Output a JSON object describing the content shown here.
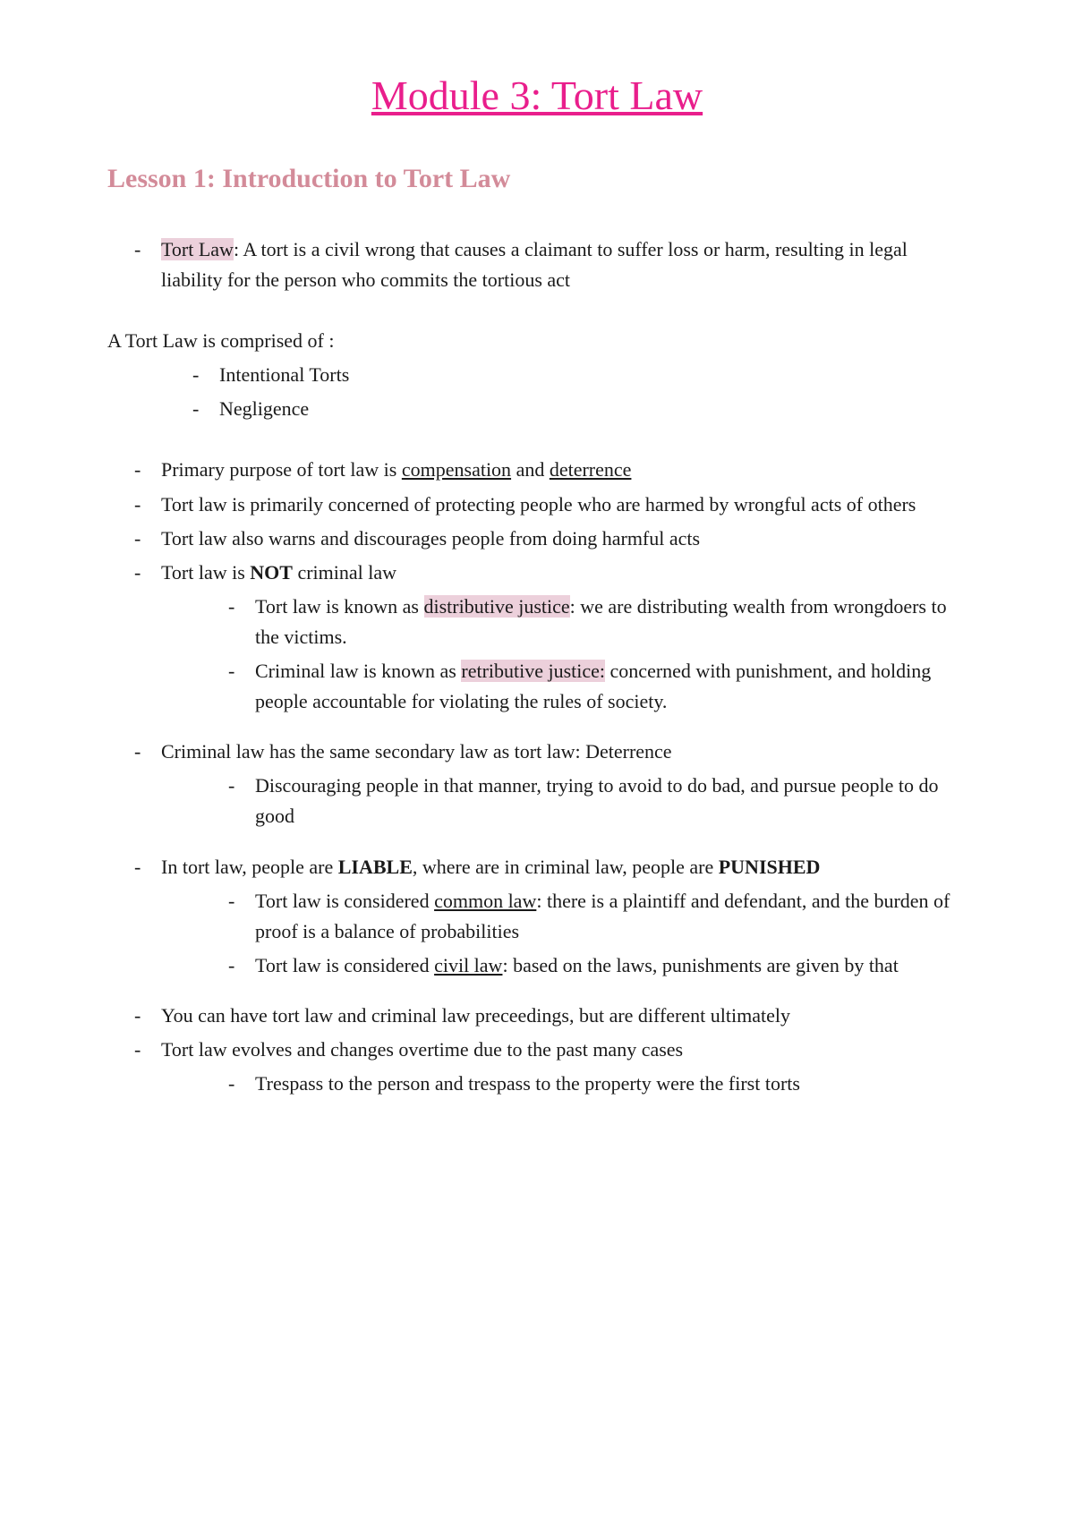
{
  "colors": {
    "title": "#e91e8c",
    "heading": "#d38b99",
    "highlight": "#ecd0db",
    "text": "#1a1a1a",
    "background": "#ffffff"
  },
  "typography": {
    "title_fontsize": 46,
    "heading_fontsize": 30,
    "body_fontsize": 22,
    "font_family": "Georgia serif"
  },
  "title": "Module 3: Tort Law",
  "heading": "Lesson 1: Introduction to Tort Law",
  "def_term": "Tort Law",
  "def_body": ": A tort is a civil wrong that causes a claimant to suffer loss or harm, resulting in legal liability for the person who commits the tortious act",
  "comprised": "A Tort Law is comprised of :",
  "comp_1": "Intentional Torts",
  "comp_2": "Negligence",
  "p1_pre": "Primary purpose of tort law is ",
  "p1_u1": "compensation",
  "p1_mid": " and ",
  "p1_u2": "deterrence",
  "p2": "Tort law is primarily concerned of protecting people who are harmed by wrongful acts of others",
  "p3": "Tort law also warns and discourages people from doing harmful acts",
  "p4_pre": "Tort law is ",
  "p4_b": "NOT",
  "p4_post": " criminal law",
  "p4a_pre": " Tort law is known as ",
  "p4a_hl": "distributive justice",
  "p4a_post": ": we are distributing wealth from wrongdoers to the victims.",
  "p4b_pre": "Criminal law is known as ",
  "p4b_hl": "retributive justice:",
  "p4b_post": " concerned with punishment, and holding people accountable for violating the rules of society.",
  "p5": "Criminal law has the same secondary law as tort law: Deterrence",
  "p5a": "Discouraging people in that manner, trying to avoid to do bad, and pursue people to do good",
  "p6_pre": "In tort law, people are ",
  "p6_b1": "LIABLE",
  "p6_mid": ", where are in criminal law, people are ",
  "p6_b2": "PUNISHED",
  "p6a_pre": "Tort law is considered ",
  "p6a_u": "common law",
  "p6a_post": ": there is a plaintiff and defendant, and the burden of proof is a balance of probabilities",
  "p6b_pre": "Tort law is considered ",
  "p6b_u": "civil law",
  "p6b_post": ": based on the laws, punishments are given by that",
  "p7": "You can have tort law and criminal law preceedings, but are different ultimately",
  "p8": "Tort law evolves and changes overtime due to the past many cases",
  "p8a": "Trespass to the person and trespass to the property were the first torts"
}
